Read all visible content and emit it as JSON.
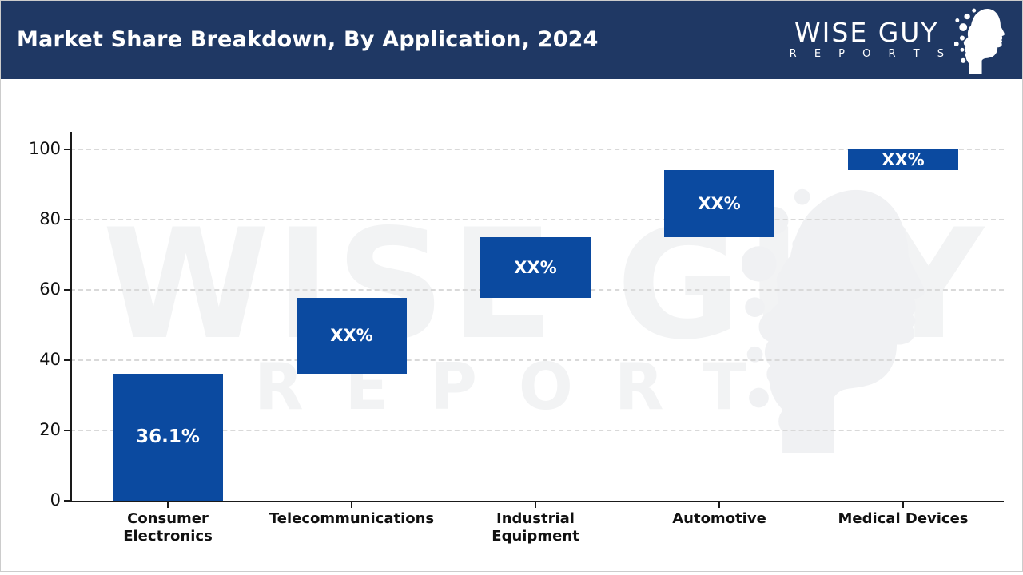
{
  "header": {
    "title": "Market Share Breakdown, By Application, 2024",
    "brand": {
      "wordmark": "WISE GUY",
      "wordmark_sub": "R E P O R T S"
    },
    "bg_color": "#1f3864"
  },
  "watermark": {
    "wordmark": "WISE GUY",
    "wordmark_sub": "REPORTS"
  },
  "chart_data": {
    "type": "bar",
    "variant": "waterfall",
    "title": "Market Share Breakdown, By Application, 2024",
    "categories": [
      [
        "Consumer",
        "Electronics"
      ],
      [
        "Telecommunications"
      ],
      [
        "Industrial",
        "Equipment"
      ],
      [
        "Automotive"
      ],
      [
        "Medical Devices"
      ]
    ],
    "segments": [
      {
        "name": "Consumer Electronics",
        "start": 0,
        "end": 36.1,
        "value": 36.1,
        "label": "36.1%"
      },
      {
        "name": "Telecommunications",
        "start": 36.1,
        "end": 57.7,
        "value": 21.6,
        "label": "XX%"
      },
      {
        "name": "Industrial Equipment",
        "start": 57.7,
        "end": 75.0,
        "value": 17.3,
        "label": "XX%"
      },
      {
        "name": "Automotive",
        "start": 75.0,
        "end": 94.0,
        "value": 19.0,
        "label": "XX%"
      },
      {
        "name": "Medical Devices",
        "start": 94.0,
        "end": 100.0,
        "value": 6.0,
        "label": "XX%"
      }
    ],
    "yticks": [
      "0",
      "20",
      "40",
      "60",
      "80",
      "100"
    ],
    "ytick_values": [
      0,
      20,
      40,
      60,
      80,
      100
    ],
    "ylim": [
      0,
      105
    ],
    "xlabel": "",
    "ylabel": "",
    "legend": "none",
    "grid": "horizontal-dashed",
    "bar_color": "#0b4aa0",
    "bar_label_color": "#ffffff"
  }
}
